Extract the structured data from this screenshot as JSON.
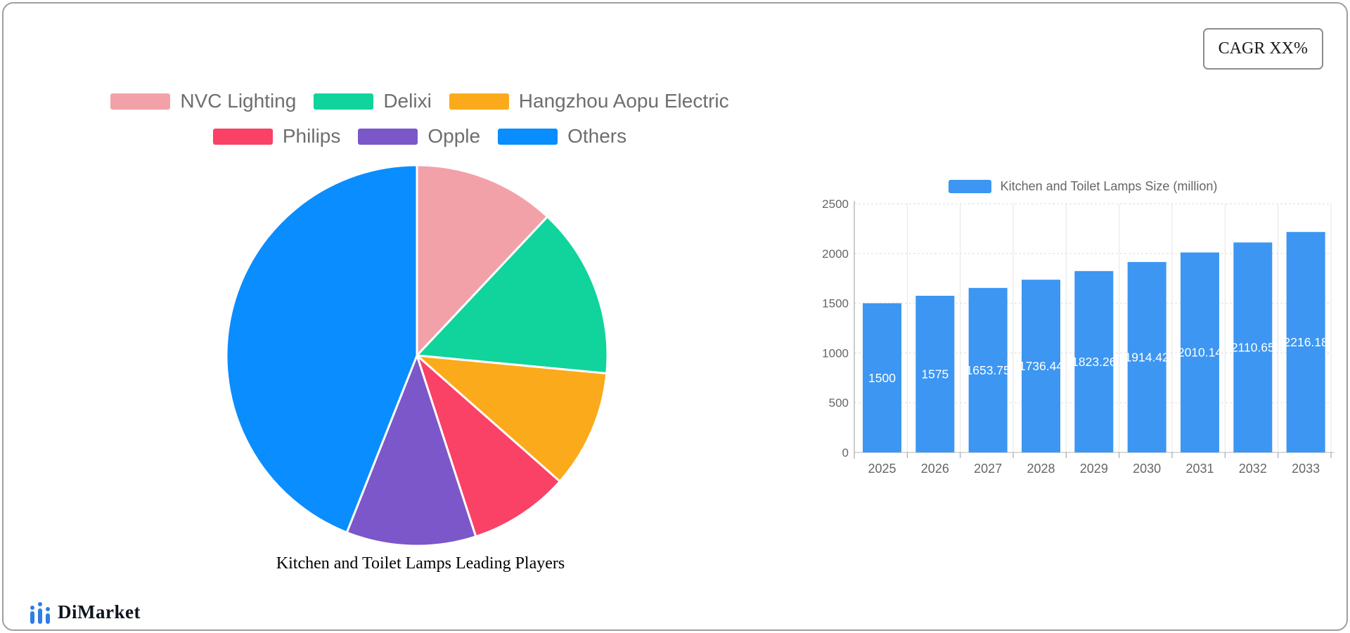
{
  "cagr_badge": {
    "label": "CAGR XX%"
  },
  "branding": {
    "name": "DiMarket",
    "icon": "bar-chart-logo-icon"
  },
  "chart_data": [
    {
      "type": "pie",
      "title": "Kitchen and Toilet Lamps Leading Players",
      "legend_position": "top",
      "start_angle_deg": 0,
      "direction": "clockwise",
      "values_are_estimated_shares_pct": true,
      "series": [
        {
          "name": "NVC Lighting",
          "value": 12,
          "color": "#f3a1a8"
        },
        {
          "name": "Delixi",
          "value": 14.5,
          "color": "#10d49c"
        },
        {
          "name": "Hangzhou Aopu Electric",
          "value": 10,
          "color": "#fbaa1b"
        },
        {
          "name": "Philips",
          "value": 8.5,
          "color": "#f94266"
        },
        {
          "name": "Opple",
          "value": 11,
          "color": "#7b57c9"
        },
        {
          "name": "Others",
          "value": 44,
          "color": "#0a8dff"
        }
      ]
    },
    {
      "type": "bar",
      "legend": "Kitchen and Toilet Lamps Size (million)",
      "legend_position": "top",
      "categories": [
        "2025",
        "2026",
        "2027",
        "2028",
        "2029",
        "2030",
        "2031",
        "2032",
        "2033"
      ],
      "values": [
        1500,
        1575,
        1653.75,
        1736.44,
        1823.26,
        1914.42,
        2010.14,
        2110.65,
        2216.18
      ],
      "value_labels": [
        "1500",
        "1575",
        "1653.75",
        "1736.44",
        "1823.26",
        "1914.42",
        "2010.14",
        "2110.65",
        "2216.18"
      ],
      "bar_color": "#3d96f1",
      "value_label_color": "#ffffff",
      "axis_label_color": "#666666",
      "ylim": [
        0,
        2500
      ],
      "yticks": [
        0,
        500,
        1000,
        1500,
        2000,
        2500
      ],
      "grid": true
    }
  ]
}
